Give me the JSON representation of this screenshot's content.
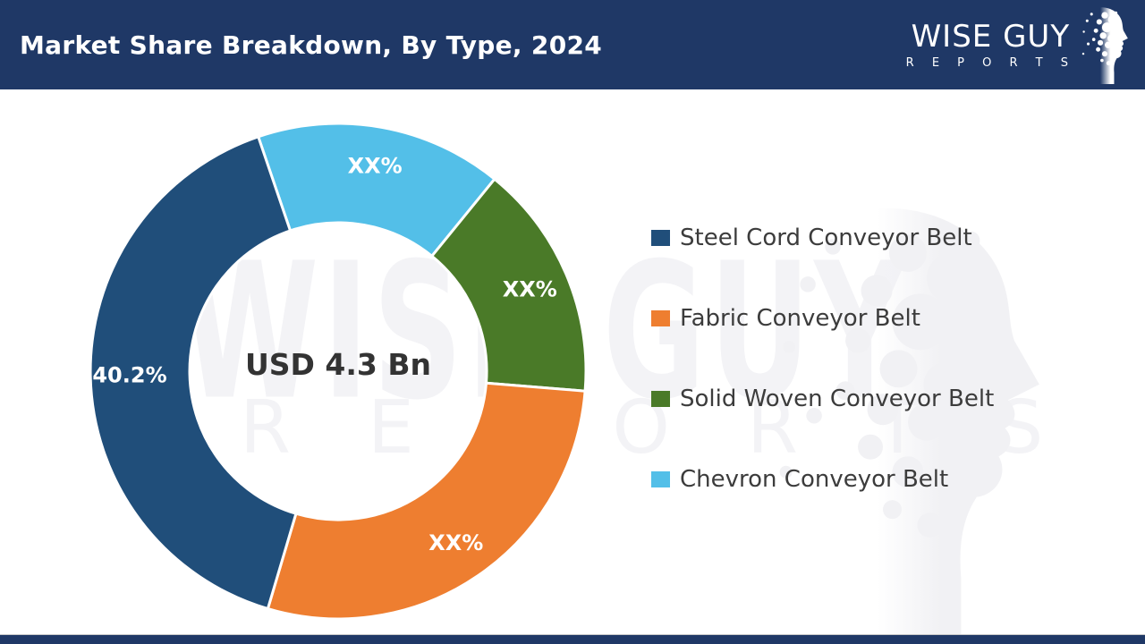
{
  "header": {
    "title": "Market Share Breakdown, By Type, 2024",
    "logo": {
      "line1": "WISE GUY",
      "line2": "R E P O R T S"
    }
  },
  "watermark": {
    "line1": "WISE GUY",
    "line2": "R E P O R T S"
  },
  "colors": {
    "navy": "#1F3866",
    "steel_blue": "#204E7A",
    "orange": "#EE7E30",
    "green": "#4A7A28",
    "sky_blue": "#53BFE8",
    "legend_text": "#3C3C3C",
    "watermark_gray": "#F3F3F6",
    "label_white": "#FFFFFF"
  },
  "chart_data": {
    "type": "pie",
    "subtype": "donut",
    "title": "Market Share Breakdown, By Type, 2024",
    "center_label": "USD 4.3 Bn",
    "start_angle_deg": 108.8,
    "direction": "clockwise",
    "donut_hole_ratio": 0.6,
    "legend_position": "right",
    "segments": [
      {
        "name": "Chevron Conveyor Belt",
        "value_pct": 16.1,
        "display_label": "XX%",
        "color": "#53BFE8"
      },
      {
        "name": "Solid Woven Conveyor Belt",
        "value_pct": 15.4,
        "display_label": "XX%",
        "color": "#4A7A28"
      },
      {
        "name": "Fabric Conveyor Belt",
        "value_pct": 28.3,
        "display_label": "XX%",
        "color": "#EE7E30"
      },
      {
        "name": "Steel Cord Conveyor Belt",
        "value_pct": 40.2,
        "display_label": "40.2%",
        "color": "#204E7A"
      }
    ]
  },
  "legend": {
    "items": [
      {
        "label": "Steel Cord Conveyor Belt",
        "color": "#204E7A"
      },
      {
        "label": "Fabric Conveyor Belt",
        "color": "#EE7E30"
      },
      {
        "label": "Solid Woven Conveyor Belt",
        "color": "#4A7A28"
      },
      {
        "label": "Chevron Conveyor Belt",
        "color": "#53BFE8"
      }
    ]
  }
}
